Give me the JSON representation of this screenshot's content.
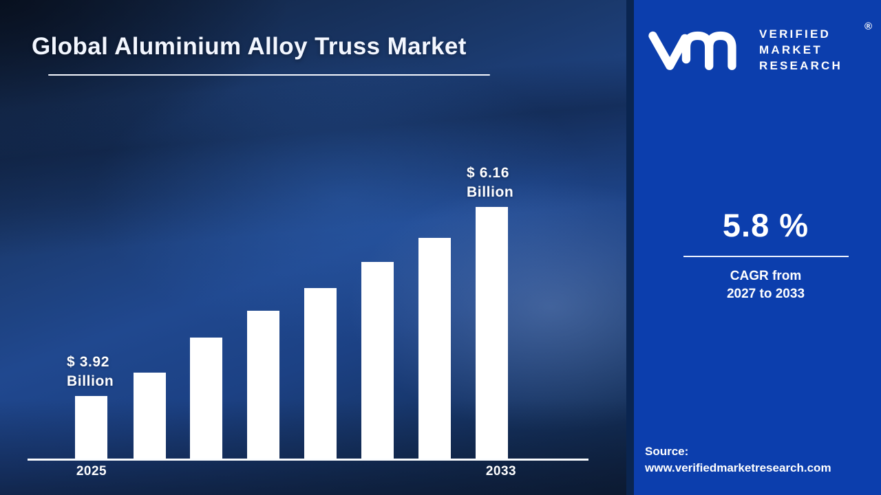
{
  "header": {
    "title": "Global Aluminium Alloy Truss Market"
  },
  "brand": {
    "lines": [
      "VERIFIED",
      "MARKET",
      "RESEARCH"
    ],
    "registered_mark": "®"
  },
  "stat_panel": {
    "cagr_value": "5.8 %",
    "caption_line1": "CAGR from",
    "caption_line2": "2027 to 2033"
  },
  "source": {
    "label": "Source:",
    "url": "www.verifiedmarketresearch.com"
  },
  "colors": {
    "panel_blue": "#0c3ead",
    "bar_white": "#ffffff",
    "background_navy": "#14305c",
    "text_white": "#ffffff"
  },
  "chart_data": {
    "type": "bar",
    "categories": [
      "2025",
      "",
      "",
      "",
      "",
      "",
      "",
      "2033"
    ],
    "values": [
      3.92,
      4.2,
      4.61,
      4.93,
      5.2,
      5.51,
      5.79,
      6.16
    ],
    "unit": "USD Billion",
    "bar_color": "#ffffff",
    "first_point_label": {
      "line1": "$ 3.92",
      "line2": "Billion"
    },
    "last_point_label": {
      "line1": "$ 6.16",
      "line2": "Billion"
    },
    "x_axis_visible_ticks": {
      "first": "2025",
      "last": "2033"
    },
    "baseline_value_at_axis": 3.16,
    "ylim": [
      3.16,
      6.4
    ],
    "grid": false,
    "legend": false
  }
}
